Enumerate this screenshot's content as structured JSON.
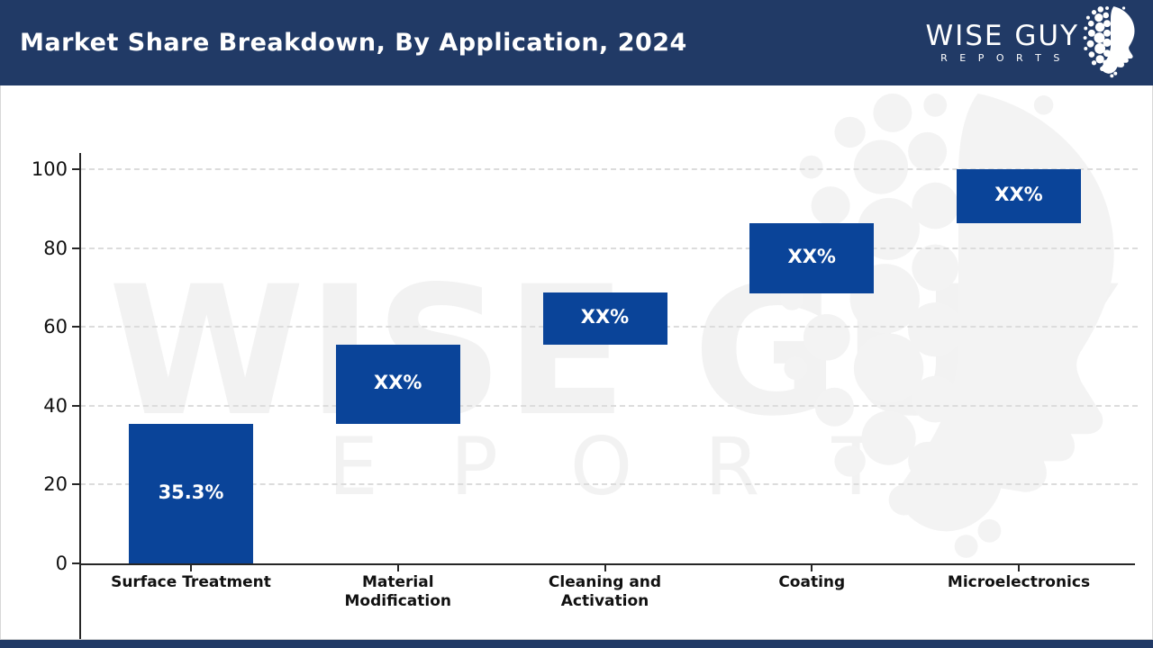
{
  "header": {
    "title": "Market Share Breakdown, By Application, 2024",
    "logo_line1": "WISE GUY",
    "logo_line2": "R E P O R T S"
  },
  "watermark": {
    "line1": "WISE GUY",
    "line2": "R E P O R T S"
  },
  "colors": {
    "header_bg": "#213a66",
    "bar": "#0a4499",
    "grid": "#dcdcdc",
    "axis": "#262626",
    "bar_label": "#ffffff",
    "watermark": "#f2f2f2"
  },
  "chart_data": {
    "type": "waterfall",
    "title": "Market Share Breakdown, By Application, 2024",
    "categories": [
      "Surface Treatment",
      "Material\nModification",
      "Cleaning and\nActivation",
      "Coating",
      "Microelectronics"
    ],
    "bars": [
      {
        "category": "Surface Treatment",
        "label": "35.3%",
        "start": 0,
        "end": 35.3
      },
      {
        "category": "Material Modification",
        "label": "XX%",
        "start": 35.5,
        "end": 55.4
      },
      {
        "category": "Cleaning and Activation",
        "label": "XX%",
        "start": 55.4,
        "end": 68.7
      },
      {
        "category": "Coating",
        "label": "XX%",
        "start": 68.5,
        "end": 86.2
      },
      {
        "category": "Microelectronics",
        "label": "XX%",
        "start": 86.3,
        "end": 100
      }
    ],
    "y_ticks": [
      0,
      20,
      40,
      60,
      80,
      100
    ],
    "ylim": [
      0,
      104
    ],
    "xlabel": "",
    "ylabel": "",
    "grid": "horizontal-dashed",
    "legend": "none"
  }
}
